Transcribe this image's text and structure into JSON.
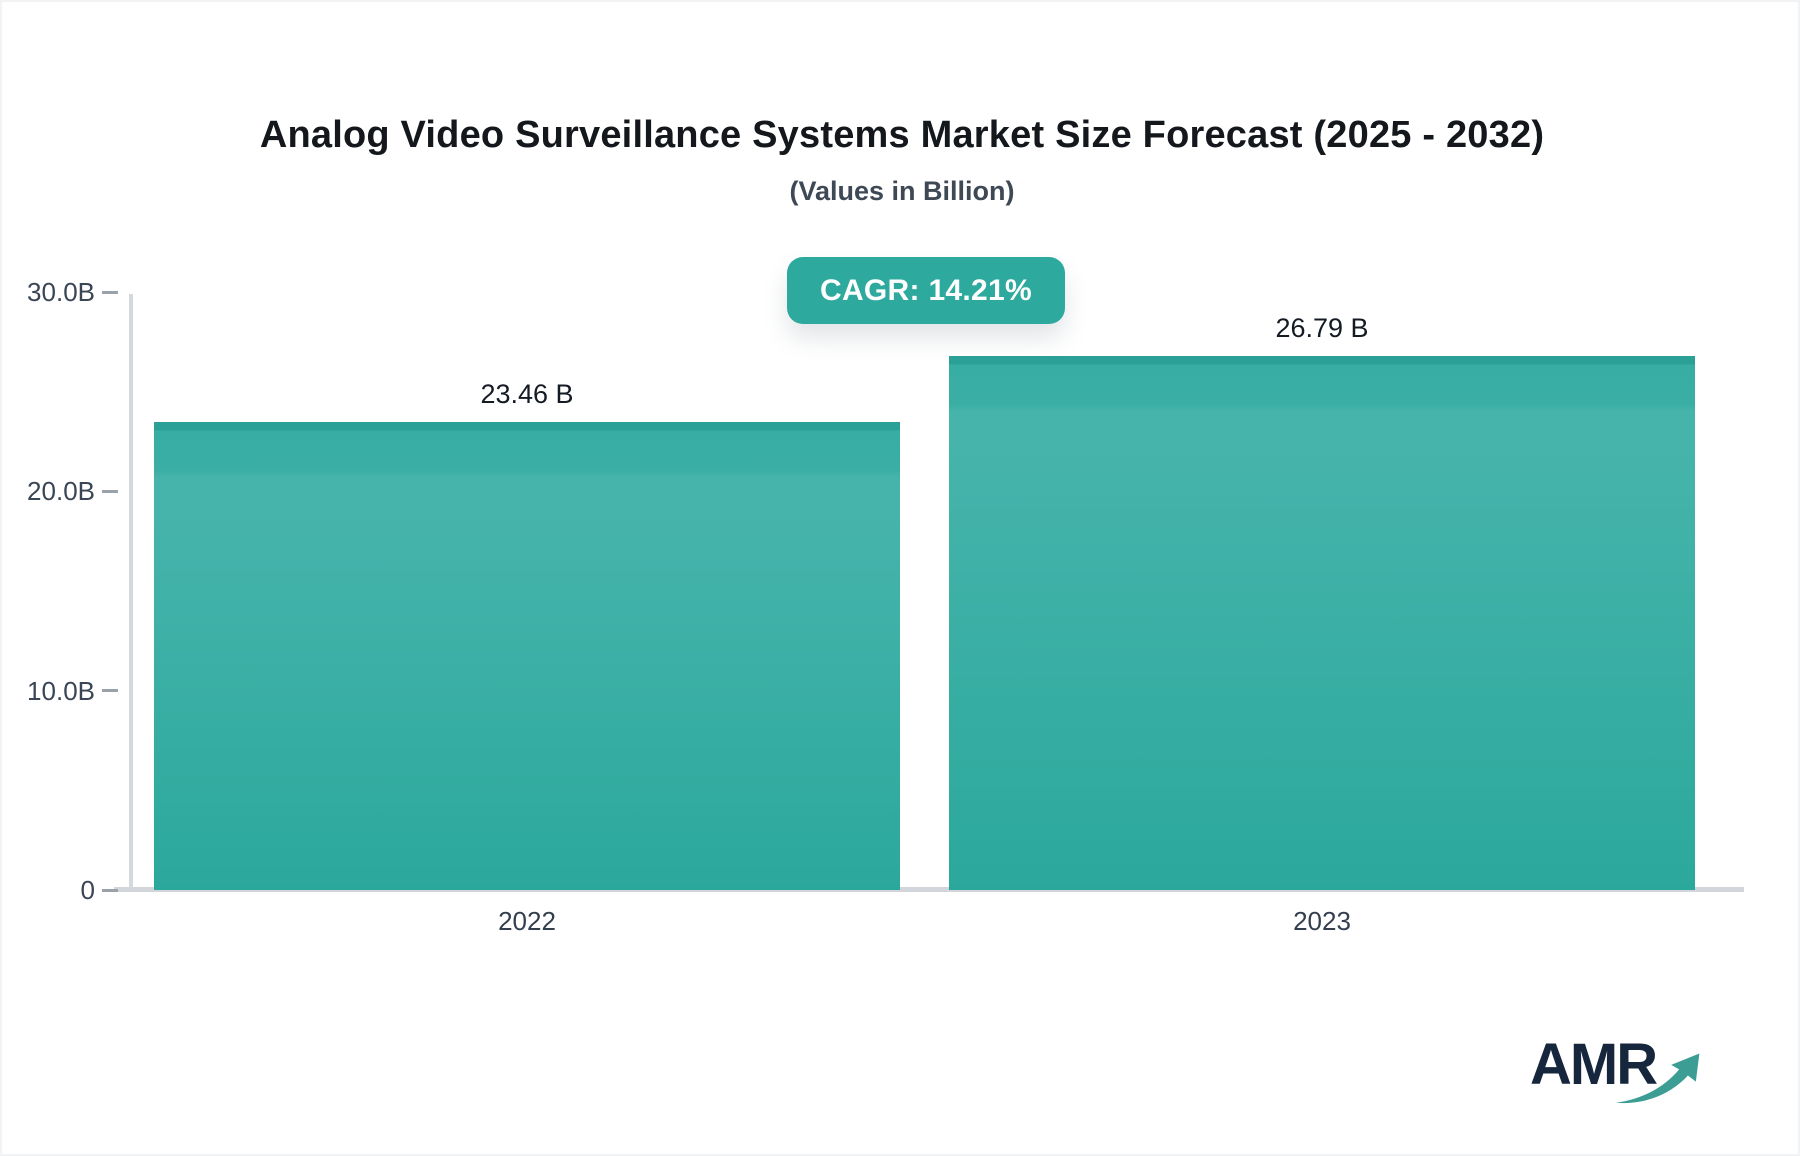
{
  "header": {
    "title": "Analog Video Surveillance Systems Market Size Forecast (2025 - 2032)",
    "subtitle": "(Values in Billion)"
  },
  "badge": {
    "label": "CAGR: 14.21%",
    "background_color": "#2ea99e",
    "text_color": "#ffffff"
  },
  "chart_data": {
    "type": "bar",
    "title": "Analog Video Surveillance Systems Market Size Forecast (2025 - 2032)",
    "subtitle": "(Values in Billion)",
    "categories": [
      "2022",
      "2023"
    ],
    "values": [
      23.46,
      26.79
    ],
    "bar_labels": [
      "23.46 B",
      "26.79 B"
    ],
    "cagr_percent": 14.21,
    "xlabel": "",
    "ylabel": "",
    "ylim": [
      0,
      30
    ],
    "yticks": [
      {
        "label": "0",
        "value": 0
      },
      {
        "label": "10.0B",
        "value": 10
      },
      {
        "label": "20.0B",
        "value": 20
      },
      {
        "label": "30.0B",
        "value": 30
      }
    ],
    "grid": false,
    "legend": "none",
    "bar_color": "#35aca2",
    "bar_gradient_top": "#2aa096",
    "bar_gradient_mid": "#47b4ab",
    "bar_gradient_bottom": "#2ba89c",
    "axis_color": "#d5d8dc",
    "tick_color": "#99a1ab",
    "label_color": "#333e4f"
  },
  "logo": {
    "text": "AMR",
    "text_color": "#16263c",
    "arrow_color": "#3b9d93"
  }
}
